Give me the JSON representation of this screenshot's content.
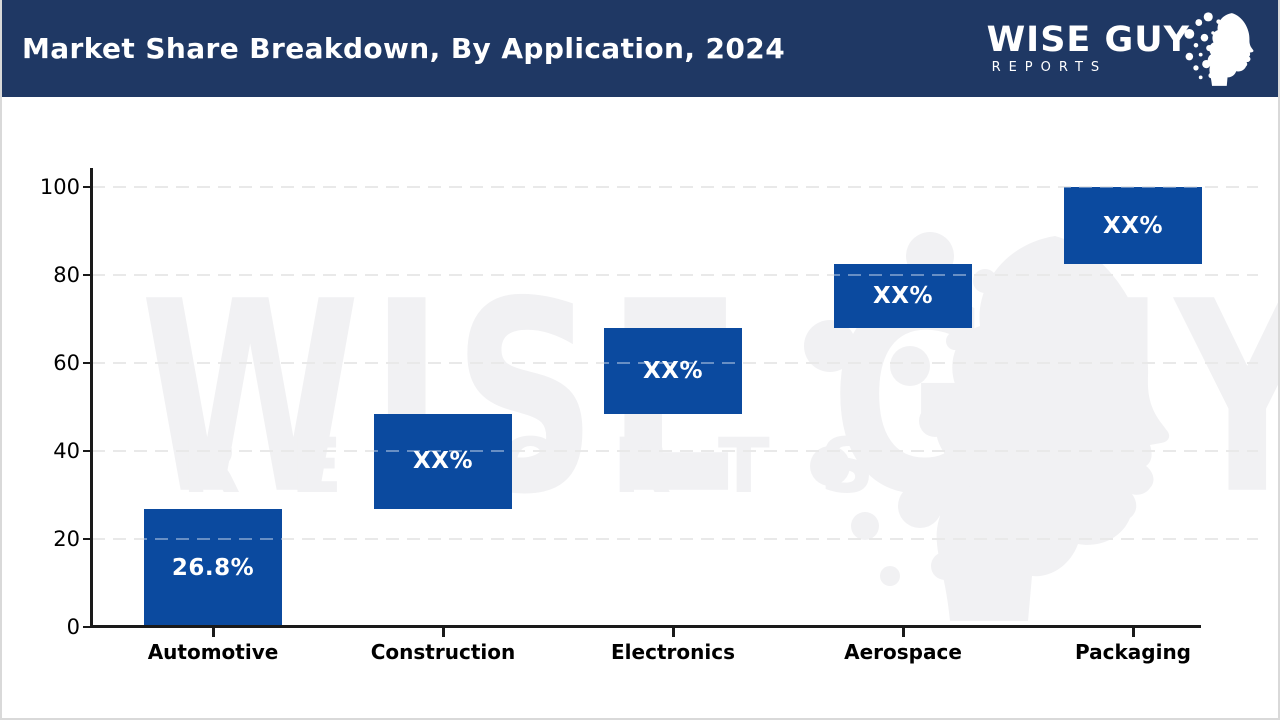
{
  "header": {
    "title": "Market Share Breakdown, By Application, 2024",
    "logo": {
      "line1": "WISE GUY",
      "line2": "REPORTS"
    }
  },
  "watermark": {
    "line1": "WISE GUY",
    "line2": "REPORTS"
  },
  "colors": {
    "header_bg": "#1f3864",
    "bar": "#0b4a9f",
    "grid": "#dcdcdc",
    "axis": "#1a1a1a",
    "watermark": "#f1f1f3",
    "bar_label_text": "#ffffff",
    "title_text": "#ffffff"
  },
  "chart_data": {
    "type": "bar",
    "subtype": "waterfall",
    "title": "Market Share Breakdown, By Application, 2024",
    "categories": [
      "Automotive",
      "Construction",
      "Electronics",
      "Aerospace",
      "Packaging"
    ],
    "segments": [
      {
        "category": "Automotive",
        "label": "26.8%",
        "start": 0,
        "end": 26.8
      },
      {
        "category": "Construction",
        "label": "XX%",
        "start": 26.8,
        "end": 48.5
      },
      {
        "category": "Electronics",
        "label": "XX%",
        "start": 48.5,
        "end": 68.0
      },
      {
        "category": "Aerospace",
        "label": "XX%",
        "start": 68.0,
        "end": 82.5
      },
      {
        "category": "Packaging",
        "label": "XX%",
        "start": 82.5,
        "end": 100.0
      }
    ],
    "y_ticks": [
      0,
      20,
      40,
      60,
      80,
      100
    ],
    "ylim": [
      0,
      105
    ],
    "xlabel": "",
    "ylabel": "",
    "grid": "horizontal-dashed",
    "legend": "none"
  }
}
